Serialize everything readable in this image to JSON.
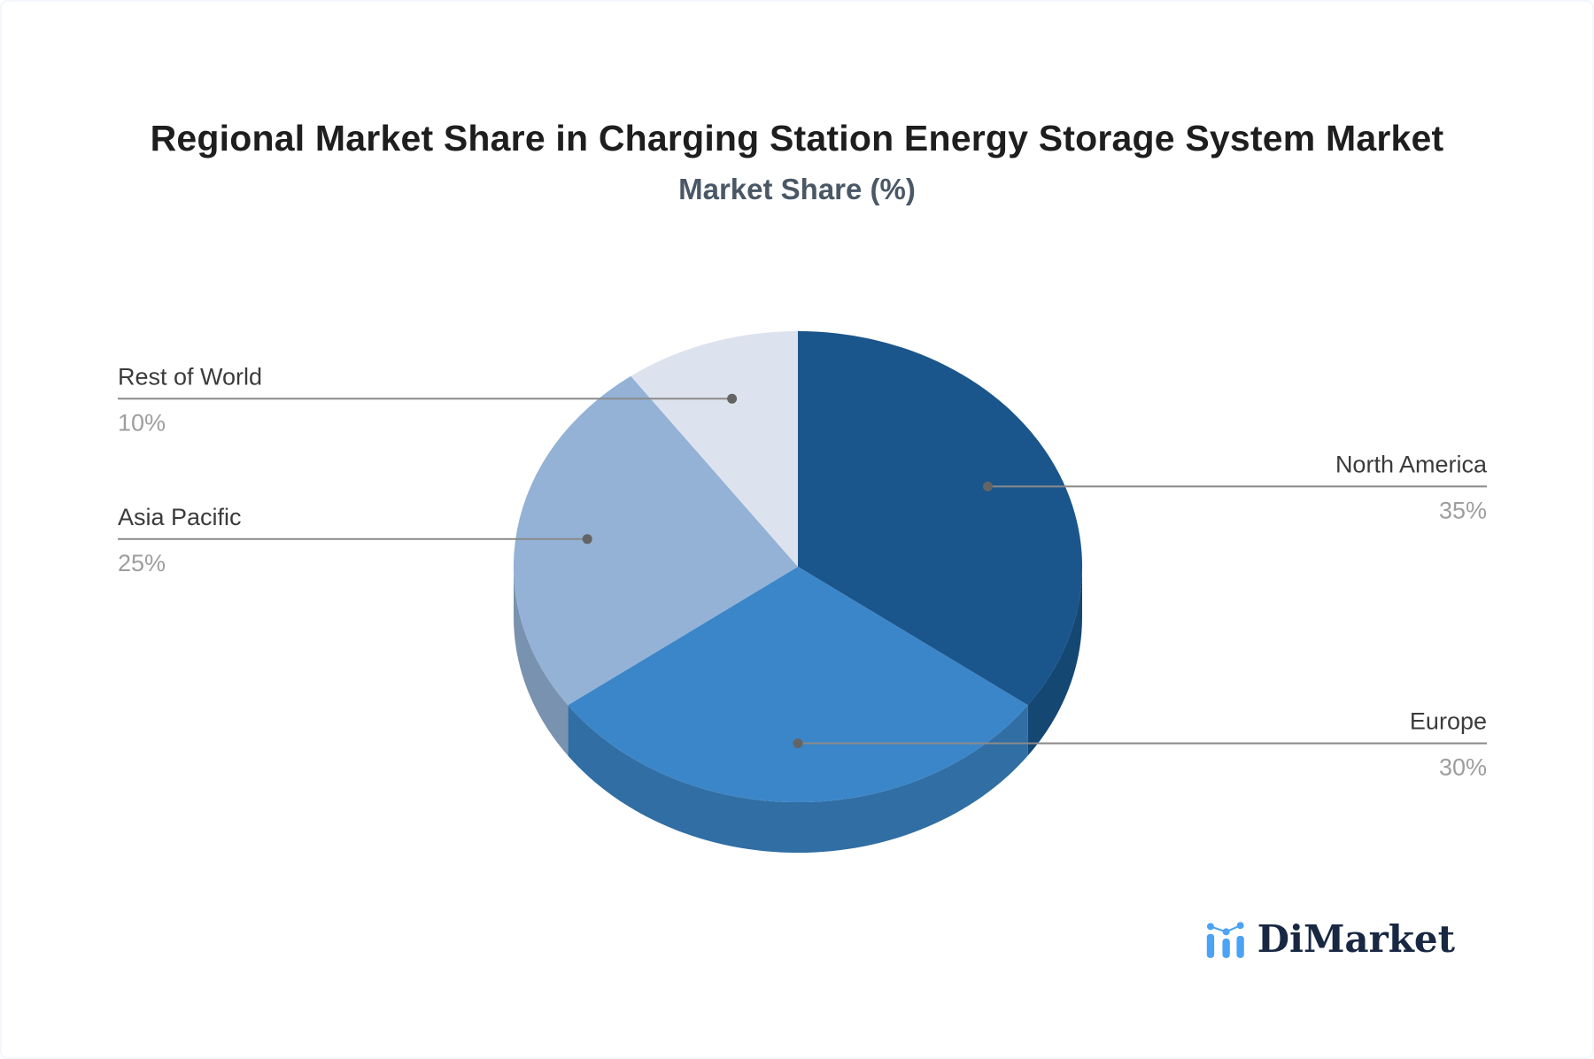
{
  "title": "Regional Market Share in Charging Station Energy Storage System Market",
  "subtitle": "Market Share (%)",
  "logo": {
    "text": "DiMarket",
    "icon_color": "#4BA3F5",
    "text_color": "#182843"
  },
  "chart_data": {
    "type": "pie",
    "title": "Regional Market Share in Charging Station Energy Storage System Market",
    "subtitle": "Market Share (%)",
    "unit": "%",
    "effect": "3d",
    "start_angle_deg": 0,
    "direction": "clockwise",
    "slices": [
      {
        "label": "North America",
        "value": 35,
        "display_value": "35%",
        "color": "#1A568C",
        "label_side": "right"
      },
      {
        "label": "Europe",
        "value": 30,
        "display_value": "30%",
        "color": "#3B86C8",
        "label_side": "right"
      },
      {
        "label": "Asia Pacific",
        "value": 25,
        "display_value": "25%",
        "color": "#93B2D6",
        "label_side": "left"
      },
      {
        "label": "Rest of World",
        "value": 10,
        "display_value": "10%",
        "color": "#DDE3EE",
        "label_side": "left"
      }
    ],
    "style": {
      "depth": 57,
      "side_darken": 0.82,
      "label_line_color": "#8A8A8A",
      "label_dot_color": "#646464",
      "label_color": "#3B3B3B",
      "value_color": "#9E9E9E",
      "background": "#FFFFFF"
    }
  }
}
